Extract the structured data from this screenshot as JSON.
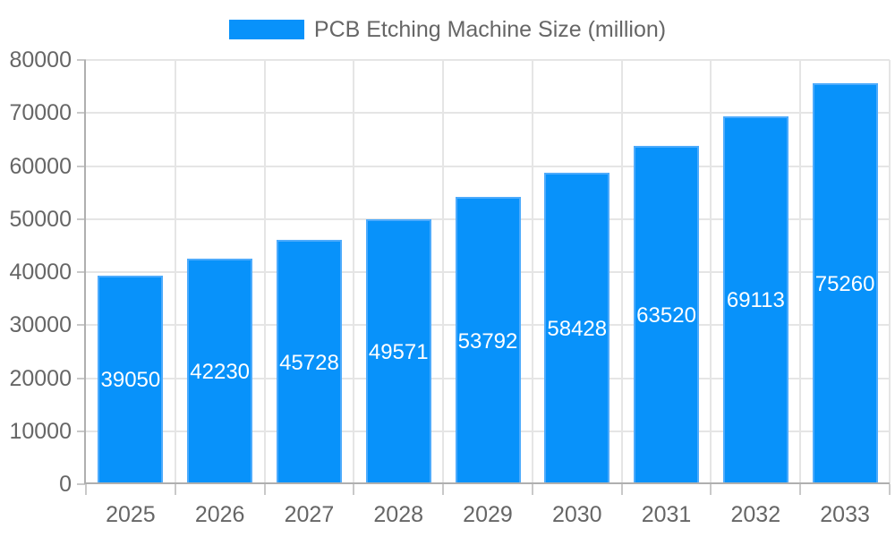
{
  "chart_data": {
    "type": "bar",
    "title": "PCB Etching Machine Size (million)",
    "legend_position": "top",
    "categories": [
      "2025",
      "2026",
      "2027",
      "2028",
      "2029",
      "2030",
      "2031",
      "2032",
      "2033"
    ],
    "series": [
      {
        "name": "PCB Etching Machine Size (million)",
        "values": [
          39050,
          42230,
          45728,
          49571,
          53792,
          58428,
          63520,
          69113,
          75260
        ]
      }
    ],
    "value_labels": [
      39050,
      42230,
      45728,
      49571,
      53792,
      58428,
      63520,
      69113,
      75260
    ],
    "value_label_position": "inside-center",
    "xlabel": "",
    "ylabel": "",
    "ylim": [
      0,
      80000
    ],
    "ytick_step": 10000,
    "ytick_labels": [
      "0",
      "10000",
      "20000",
      "30000",
      "40000",
      "50000",
      "60000",
      "70000",
      "80000"
    ],
    "grid": true,
    "colors": {
      "bar_fill": "#0892fa",
      "bar_border": "#4dabfc",
      "grid_line": "#e5e5e5",
      "axis_line": "#afafaf",
      "tick_mark": "#c9c9c9",
      "tick_text": "#666666",
      "value_label_text": "#ffffff",
      "background": "#ffffff"
    }
  }
}
